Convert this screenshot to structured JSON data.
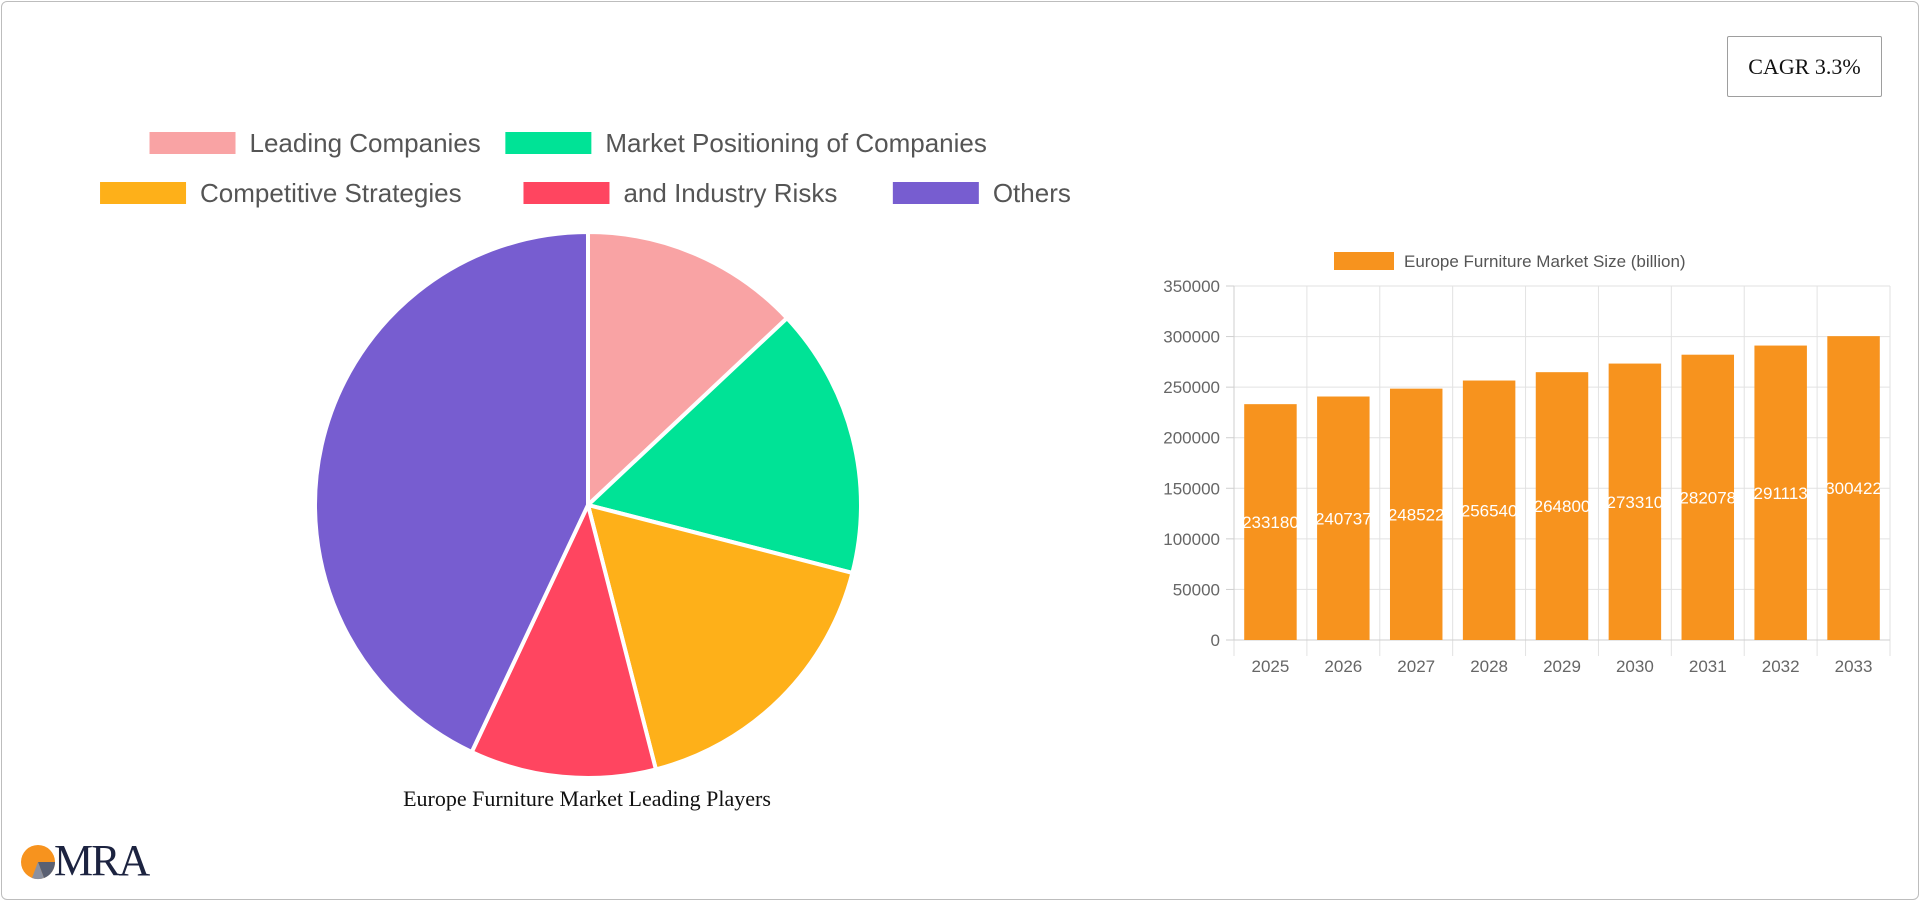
{
  "badge": {
    "cagr_label": "CAGR 3.3%"
  },
  "chart_data": [
    {
      "type": "pie",
      "title": "Europe Furniture Market Leading Players",
      "legend_position": "top",
      "series": [
        {
          "name": "Leading Companies",
          "value": 13,
          "color": "#f9a3a4"
        },
        {
          "name": "Market Positioning of Companies",
          "value": 16,
          "color": "#00e396"
        },
        {
          "name": "Competitive Strategies",
          "value": 17,
          "color": "#feb019"
        },
        {
          "name": "and Industry Risks",
          "value": 11,
          "color": "#ff4560"
        },
        {
          "name": "Others",
          "value": 43,
          "color": "#775dd0"
        }
      ]
    },
    {
      "type": "bar",
      "legend_position": "top",
      "series_name": "Europe Furniture Market Size (billion)",
      "color": "#f7931e",
      "categories": [
        "2025",
        "2026",
        "2027",
        "2028",
        "2029",
        "2030",
        "2031",
        "2032",
        "2033"
      ],
      "values": [
        233180,
        240737,
        248522,
        256540,
        264800,
        273310,
        282078,
        291113,
        300422
      ],
      "data_labels": [
        "233180",
        "240737",
        "248522",
        "256540",
        "264800",
        "273310",
        "282078",
        "291113",
        "300422"
      ],
      "ylim": [
        0,
        350000
      ],
      "yticks": [
        "0",
        "50000",
        "100000",
        "150000",
        "200000",
        "250000",
        "300000",
        "350000"
      ],
      "grid": true
    }
  ],
  "logo": {
    "text": "MRA"
  }
}
